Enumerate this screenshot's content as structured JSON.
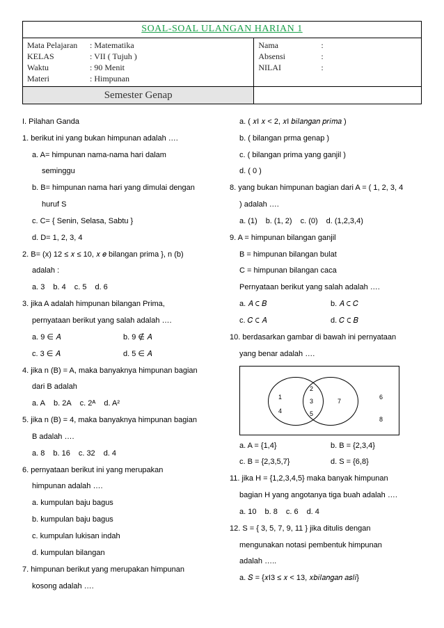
{
  "header": {
    "title": "SOAL-SOAL ULANGAN HARIAN 1",
    "left": [
      {
        "label": "Mata Pelajaran",
        "value": ": Matematika"
      },
      {
        "label": "KELAS",
        "value": ": VII ( Tujuh )"
      },
      {
        "label": "Waktu",
        "value": ": 90 Menit"
      },
      {
        "label": "Materi",
        "value": ": Himpunan"
      }
    ],
    "right": [
      {
        "label": "Nama",
        "value": ":"
      },
      {
        "label": "Absensi",
        "value": ":"
      },
      {
        "label": "NILAI",
        "value": ":"
      }
    ],
    "semester": "Semester Genap"
  },
  "left_col": [
    {
      "c": "line",
      "t": "I. Pilahan Ganda"
    },
    {
      "c": "line",
      "t": "1. berikut ini yang bukan himpunan adalah …."
    },
    {
      "c": "line indent1",
      "t": "a. A= himpunan nama-nama hari dalam"
    },
    {
      "c": "line indent2",
      "t": "seminggu"
    },
    {
      "c": "line indent1",
      "t": "b. B= himpunan nama hari yang dimulai dengan"
    },
    {
      "c": "line indent2",
      "t": "huruf S"
    },
    {
      "c": "line indent1",
      "t": "c. C= { Senin, Selasa, Sabtu }"
    },
    {
      "c": "line indent1",
      "t": "d. D= 1, 2, 3, 4"
    },
    {
      "c": "line",
      "t": "2. B= (x) 12 ≤ 𝑥 ≤ 10, 𝑥 𝑒 bilangan prima }, n (b)"
    },
    {
      "c": "line indent1",
      "t": "adalah :"
    },
    {
      "c": "line indent1 options",
      "t": "",
      "opts": [
        "a. 3",
        "b. 4",
        "c. 5",
        "d. 6"
      ]
    },
    {
      "c": "line",
      "t": "3. jika A adalah himpunan bilangan Prima,"
    },
    {
      "c": "line indent1",
      "t": "pernyataan berikut yang salah adalah …."
    },
    {
      "c": "line indent1 opts2",
      "t": "",
      "opts": [
        "a. 9 ∈ 𝐴",
        "b. 9 ∉ 𝐴"
      ]
    },
    {
      "c": "line indent1 opts2",
      "t": "",
      "opts": [
        "c. 3 ∈ 𝐴",
        "d. 5 ∈ 𝐴"
      ]
    },
    {
      "c": "line",
      "t": "4. jika n (B) = A, maka banyaknya himpunan bagian"
    },
    {
      "c": "line indent1",
      "t": "dari B adalah"
    },
    {
      "c": "line indent1 options",
      "t": "",
      "opts": [
        "a. A",
        "b. 2A",
        "c. 2ᴬ",
        "d. A²"
      ]
    },
    {
      "c": "line",
      "t": "5. jika n (B) = 4, maka banyaknya himpunan bagian"
    },
    {
      "c": "line indent1",
      "t": "B adalah …."
    },
    {
      "c": "line indent1 options",
      "t": "",
      "opts": [
        "a. 8",
        "b. 16",
        "c. 32",
        "d. 4"
      ]
    },
    {
      "c": "line",
      "t": "6. pernyataan berikut ini yang merupakan"
    },
    {
      "c": "line indent1",
      "t": "himpunan adalah …."
    },
    {
      "c": "line indent1",
      "t": "a. kumpulan baju bagus"
    },
    {
      "c": "line indent1",
      "t": "b. kumpulan baju bagus"
    },
    {
      "c": "line indent1",
      "t": "c. kumpulan lukisan indah"
    },
    {
      "c": "line indent1",
      "t": "d. kumpulan bilangan"
    },
    {
      "c": "line",
      "t": "7. himpunan berikut yang merupakan himpunan"
    },
    {
      "c": "line indent1",
      "t": "kosong adalah …."
    }
  ],
  "right_col_top": [
    {
      "c": "line indent1",
      "t": "a. ( 𝑥I 𝑥 < 2, 𝑥I 𝑏𝑖𝑙𝑎𝑛𝑔𝑎𝑛 𝑝𝑟𝑖𝑚𝑎 )"
    },
    {
      "c": "line indent1",
      "t": "b. ( bilangan prma genap )"
    },
    {
      "c": "line indent1",
      "t": "c. ( bilangan prima yang ganjil )"
    },
    {
      "c": "line indent1",
      "t": "d. ( 0 )"
    },
    {
      "c": "line",
      "t": "8. yang bukan himpunan bagian dari A = ( 1, 2, 3, 4"
    },
    {
      "c": "line indent1",
      "t": ") adalah …."
    },
    {
      "c": "line indent1 options",
      "t": "",
      "opts": [
        "a. (1)",
        "b. (1, 2)",
        "c. (0)",
        "d. (1,2,3,4)"
      ]
    },
    {
      "c": "line",
      "t": "9. A = himpunan bilangan ganjil"
    },
    {
      "c": "line indent1",
      "t": "B = himpunan bilangan bulat"
    },
    {
      "c": "line indent1",
      "t": "C = himpunan bilangan caca"
    },
    {
      "c": "line indent1",
      "t": "Pernyataan berikut yang salah adalah …."
    },
    {
      "c": "line indent1 opts2",
      "t": "",
      "opts": [
        "a. 𝐴 ⊂ 𝐵",
        "b. 𝐴 ⊂ 𝐶"
      ]
    },
    {
      "c": "line indent1 opts2",
      "t": "",
      "opts": [
        "c. 𝐶 ⊂ 𝐴",
        "d. 𝐶 ⊂ 𝐵"
      ]
    },
    {
      "c": "line",
      "t": "10. berdasarkan gambar di bawah ini pernyataan"
    },
    {
      "c": "line indent1",
      "t": "yang benar adalah …."
    }
  ],
  "venn": {
    "outer": [
      "6",
      "8"
    ],
    "left_only": [
      "1",
      "4"
    ],
    "right_only": [
      "7"
    ],
    "center": [
      "2",
      "3",
      "5"
    ]
  },
  "right_col_bottom": [
    {
      "c": "line indent1 opts2",
      "t": "",
      "opts": [
        "a. A = {1,4}",
        "b. B = {2,3,4}"
      ]
    },
    {
      "c": "line indent1 opts2",
      "t": "",
      "opts": [
        "c. B = {2,3,5,7}",
        "d. S = {6,8}"
      ]
    },
    {
      "c": "line",
      "t": "11. jika H = {1,2,3,4,5} maka banyak himpunan"
    },
    {
      "c": "line indent1",
      "t": "bagian H yang angotanya tiga buah adalah …."
    },
    {
      "c": "line indent1 options",
      "t": "",
      "opts": [
        "a. 10",
        "b. 8",
        "c. 6",
        "d. 4"
      ]
    },
    {
      "c": "line",
      "t": "12. S = { 3, 5, 7, 9, 11 } jika ditulis dengan"
    },
    {
      "c": "line indent1",
      "t": "mengunakan notasi pembentuk himpunan"
    },
    {
      "c": "line indent1",
      "t": "adalah ….."
    },
    {
      "c": "line indent1",
      "t": "a. 𝑆 = {𝑥I3 ≤ 𝑥 < 13, 𝑥𝑏𝑖𝑙𝑎𝑛𝑔𝑎𝑛 𝑎𝑠𝑙𝑖}"
    }
  ]
}
